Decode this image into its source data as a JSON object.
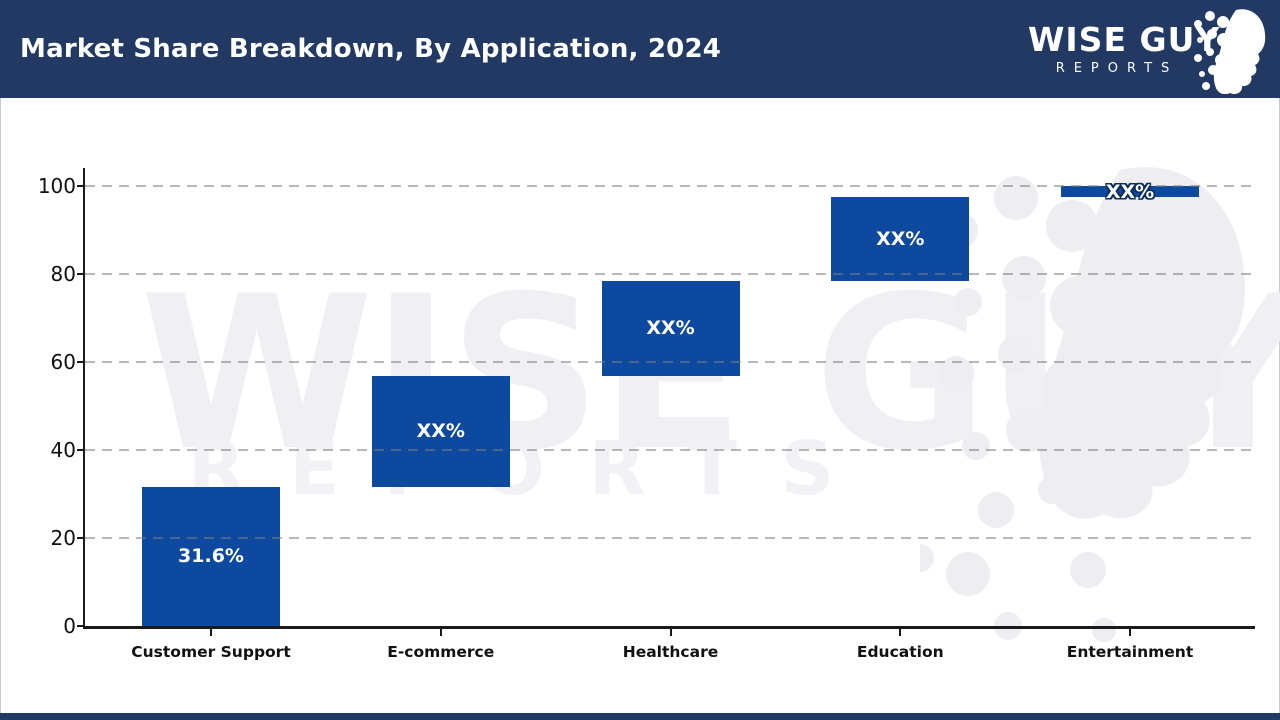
{
  "header": {
    "title": "Market Share Breakdown, By Application, 2024",
    "logo": {
      "line1": "WISE GUY",
      "line2": "REPORTS"
    }
  },
  "watermark": {
    "line1": "WISE GUY",
    "line2": "REPORTS"
  },
  "colors": {
    "header_navy": "#213963",
    "footer_navy": "#213963",
    "bar_blue": "#0d4a9f",
    "axis_black": "#1a1a1a",
    "grid_gray": "#7d7d7d",
    "label_white": "#ffffff",
    "label_outline_navy": "#0a2d5c",
    "watermark_gray": "#f0f0f4"
  },
  "chart_data": {
    "type": "bar",
    "subtype": "waterfall",
    "title": "Market Share Breakdown, By Application, 2024",
    "xlabel": "",
    "ylabel": "",
    "ylim": [
      0,
      100
    ],
    "yticks": [
      0,
      20,
      40,
      60,
      80,
      100
    ],
    "grid": "horizontal-dashed-over-bars",
    "legend": "none",
    "bar_color": "#0d4a9f",
    "categories": [
      "Customer Support",
      "E-commerce",
      "Healthcare",
      "Education",
      "Entertainment"
    ],
    "segments": [
      {
        "category": "Customer Support",
        "start": 0,
        "end": 31.6,
        "label": "31.6%",
        "label_style": "solid"
      },
      {
        "category": "E-commerce",
        "start": 31.6,
        "end": 56.9,
        "label": "XX%",
        "label_style": "solid"
      },
      {
        "category": "Healthcare",
        "start": 56.9,
        "end": 78.4,
        "label": "XX%",
        "label_style": "solid"
      },
      {
        "category": "Education",
        "start": 78.4,
        "end": 97.5,
        "label": "XX%",
        "label_style": "solid"
      },
      {
        "category": "Entertainment",
        "start": 97.5,
        "end": 100,
        "label": "XX%",
        "label_style": "outlined"
      }
    ]
  }
}
